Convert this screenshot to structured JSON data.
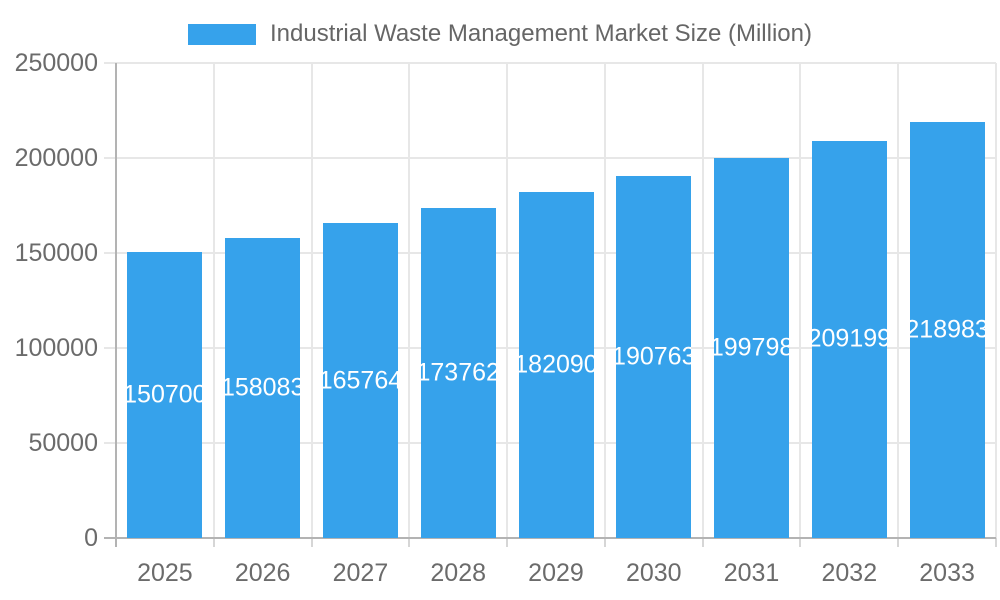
{
  "legend": {
    "label": "Industrial Waste Management Market Size (Million)"
  },
  "colors": {
    "bar": "#36A2EB",
    "bar_label": "#ffffff",
    "axis_label": "#6b6b6b",
    "legend_text": "#666666",
    "grid_line": "#e7e7e7",
    "axis_line": "#b3b3b3",
    "tick_mark": "#d6d6d6",
    "background": "#ffffff"
  },
  "chart_data": {
    "type": "bar",
    "title": "Industrial Waste Management Market Size (Million)",
    "series_name": "Industrial Waste Management Market Size (Million)",
    "categories": [
      "2025",
      "2026",
      "2027",
      "2028",
      "2029",
      "2030",
      "2031",
      "2032",
      "2033"
    ],
    "values": [
      150700,
      158083,
      165764,
      173762,
      182090,
      190763,
      199798,
      209199,
      218983
    ],
    "bar_value_labels": [
      "150700",
      "158083",
      "165764",
      "173762",
      "182090",
      "190763",
      "199798",
      "209199",
      "218983"
    ],
    "xlabel": "",
    "ylabel": "",
    "ylim": [
      0,
      250000
    ],
    "yticks": [
      0,
      50000,
      100000,
      150000,
      200000,
      250000
    ],
    "ytick_labels": [
      "0",
      "50000",
      "100000",
      "150000",
      "200000",
      "250000"
    ],
    "grid": true,
    "legend_position": "top",
    "value_labels_position": "inside-center"
  }
}
